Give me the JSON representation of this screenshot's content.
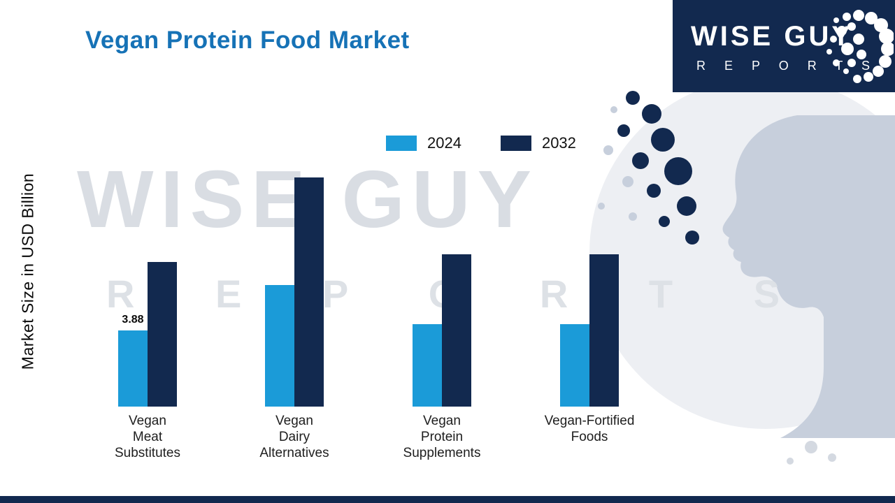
{
  "logo": {
    "line1": "WISE GUY",
    "line2": "R E P O R T S"
  },
  "watermark": {
    "line1": "WISE GUY",
    "line2": "R E P O R T S"
  },
  "colors": {
    "accent_2024": "#1b9bd8",
    "accent_2032": "#12294f",
    "title_blue": "#1672b6",
    "watermark_gray": "#d9dde3",
    "footer_navy": "#12294f"
  },
  "chart_data": {
    "type": "bar",
    "title": "Vegan Protein Food Market",
    "ylabel": "Market Size in USD Billion",
    "xlabel": "",
    "categories": [
      "Vegan Meat Substitutes",
      "Vegan Dairy Alternatives",
      "Vegan Protein Supplements",
      "Vegan-Fortified Foods"
    ],
    "category_lines": [
      [
        "Vegan",
        "Meat",
        "Substitutes"
      ],
      [
        "Vegan",
        "Dairy",
        "Alternatives"
      ],
      [
        "Vegan",
        "Protein",
        "Supplements"
      ],
      [
        "Vegan-Fortified",
        "Foods"
      ]
    ],
    "series": [
      {
        "name": "2024",
        "color": "#1b9bd8",
        "values": [
          3.88,
          6.2,
          4.2,
          4.2
        ]
      },
      {
        "name": "2032",
        "color": "#12294f",
        "values": [
          7.4,
          11.7,
          7.8,
          7.8
        ]
      }
    ],
    "value_labels": [
      {
        "series_index": 0,
        "category_index": 0,
        "text": "3.88"
      }
    ],
    "ylim": [
      0,
      12
    ],
    "grid": false,
    "legend_position": "top"
  }
}
